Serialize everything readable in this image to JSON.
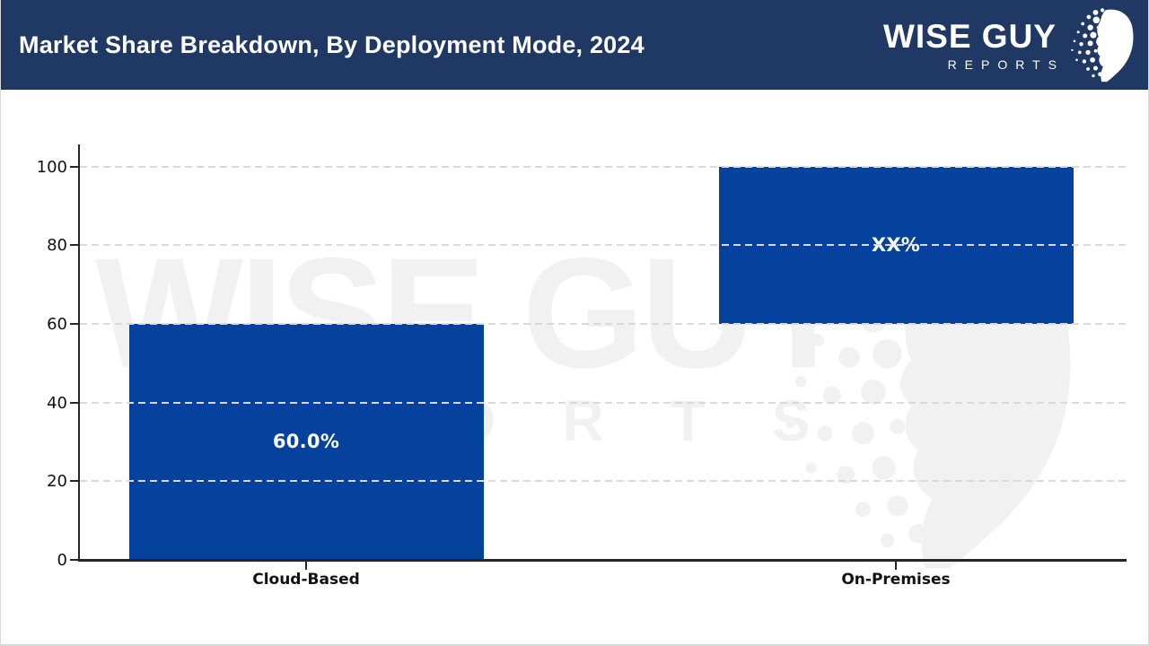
{
  "header": {
    "title": "Market Share Breakdown, By Deployment Mode, 2024",
    "logo": {
      "wordmark": "WISE GUY",
      "subtitle": "REPORTS"
    }
  },
  "watermark": {
    "line1": "WISE GUY",
    "line2": "REPORTS"
  },
  "chart_data": {
    "type": "bar",
    "title": "Market Share Breakdown, By Deployment Mode, 2024",
    "categories": [
      "Cloud-Based",
      "On-Premises"
    ],
    "bars": [
      {
        "category": "Cloud-Based",
        "start": 0,
        "end": 60,
        "label": "60.0%"
      },
      {
        "category": "On-Premises",
        "start": 60,
        "end": 100,
        "label": "XX%"
      }
    ],
    "yticks": [
      0,
      20,
      40,
      60,
      80,
      100
    ],
    "ylim": [
      0,
      105
    ],
    "xlabel": "",
    "ylabel": "",
    "grid": "horizontal-dashed",
    "legend": "none",
    "waterfall_note": "second bar floats from 60 to 100"
  },
  "colors": {
    "header_bg": "#1f3864",
    "bar": "#05429e",
    "grid": "#d9d9d9",
    "axis": "#262626",
    "watermark": "#f1f1f1",
    "page_border": "#d9d9d9"
  }
}
